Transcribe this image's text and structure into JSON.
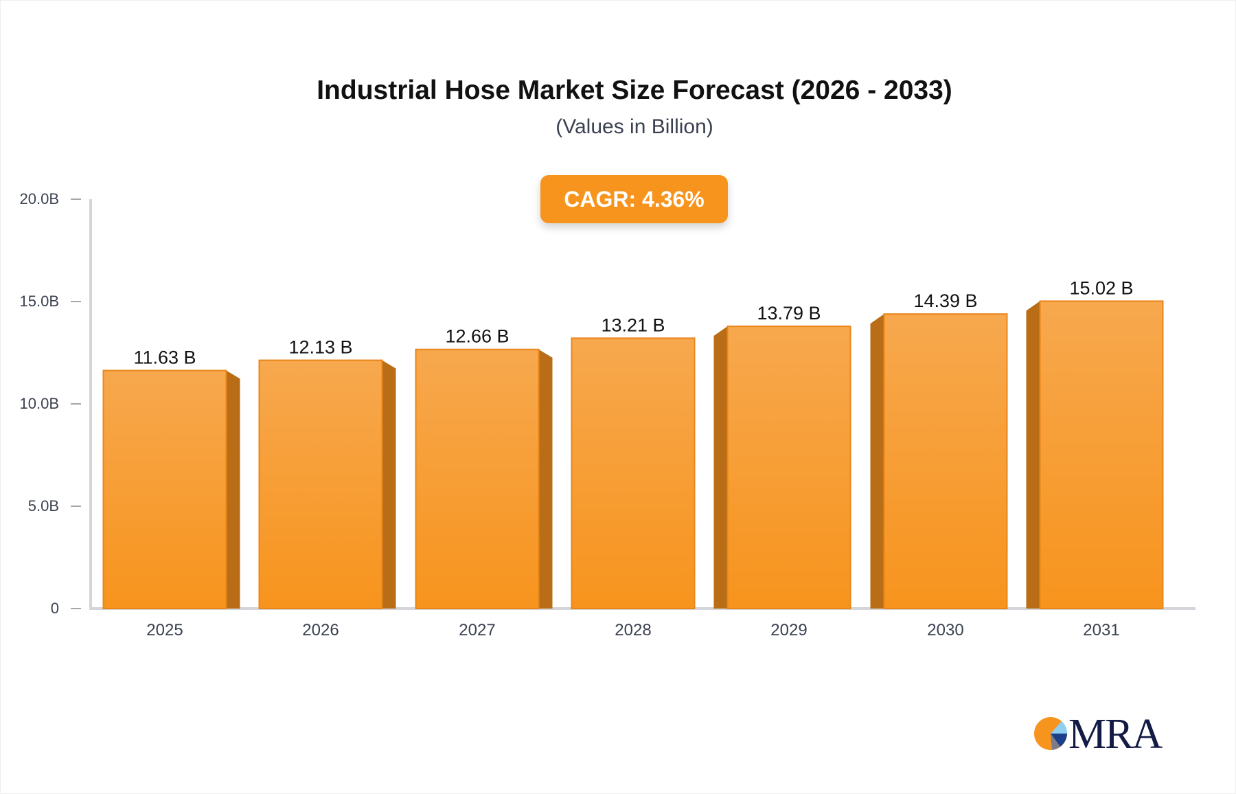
{
  "chart_data": {
    "type": "bar",
    "title": "Industrial Hose Market Size Forecast (2026 - 2033)",
    "subtitle": "(Values in Billion)",
    "annotation": "CAGR: 4.36%",
    "categories": [
      "2025",
      "2026",
      "2027",
      "2028",
      "2029",
      "2030",
      "2031"
    ],
    "values": [
      11.63,
      12.13,
      12.66,
      13.21,
      13.79,
      14.39,
      15.02
    ],
    "data_labels": [
      "11.63 B",
      "12.13 B",
      "12.66 B",
      "13.21 B",
      "13.79 B",
      "14.39 B",
      "15.02 B"
    ],
    "y_ticks": [
      0,
      5,
      10,
      15,
      20
    ],
    "y_tick_labels": [
      "0",
      "5.0B",
      "10.0B",
      "15.0B",
      "20.0B"
    ],
    "ylim": [
      0,
      20
    ],
    "xlabel": "",
    "ylabel": "",
    "grid": false,
    "colors": {
      "bar": "#f7941d",
      "bar_top": "#f7a84e",
      "bar_side": "#b86d16",
      "axis": "#d3d5db"
    }
  },
  "logo": {
    "text": "MRA",
    "colors": [
      "#f7941d",
      "#8ecff2",
      "#1b3f8b",
      "#7b7b8b"
    ]
  }
}
